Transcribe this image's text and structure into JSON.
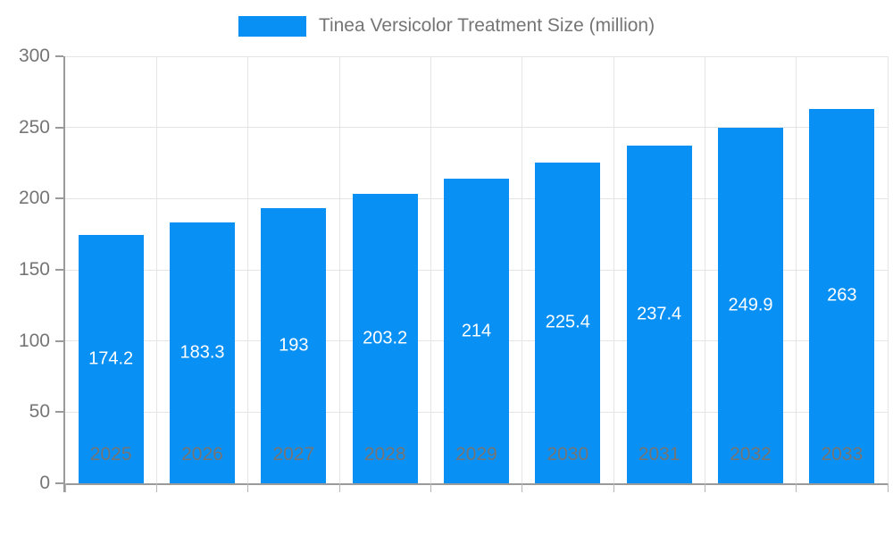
{
  "legend": {
    "label": "Tinea Versicolor Treatment Size (million)"
  },
  "chart_data": {
    "type": "bar",
    "title": "Tinea Versicolor Treatment Size (million)",
    "categories": [
      "2025",
      "2026",
      "2027",
      "2028",
      "2029",
      "2030",
      "2031",
      "2032",
      "2033"
    ],
    "values": [
      174.2,
      183.3,
      193,
      203.2,
      214,
      225.4,
      237.4,
      249.9,
      263
    ],
    "value_labels": [
      "174.2",
      "183.3",
      "193",
      "203.2",
      "214",
      "225.4",
      "237.4",
      "249.9",
      "263"
    ],
    "xlabel": "",
    "ylabel": "",
    "ylim": [
      0,
      300
    ],
    "yticks": [
      0,
      50,
      100,
      150,
      200,
      250,
      300
    ],
    "grid": true,
    "legend_position": "top",
    "colors": {
      "bar": "#0890f5",
      "value_text": "#ffffff",
      "axis_text": "#757575",
      "grid_line": "#e5e5e5",
      "axis_line": "#9a9a9a"
    }
  }
}
